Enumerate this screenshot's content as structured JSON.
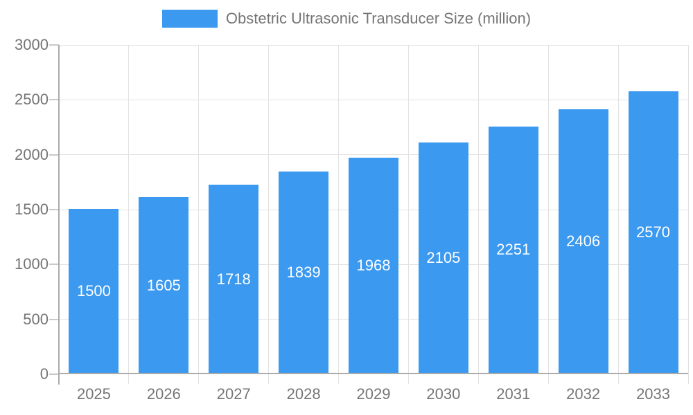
{
  "chart_data": {
    "type": "bar",
    "title": "",
    "legend": "Obstetric Ultrasonic Transducer Size (million)",
    "legend_position": "top",
    "categories": [
      "2025",
      "2026",
      "2027",
      "2028",
      "2029",
      "2030",
      "2031",
      "2032",
      "2033"
    ],
    "values": [
      1500,
      1605,
      1718,
      1839,
      1968,
      2105,
      2251,
      2406,
      2570
    ],
    "series": [
      {
        "name": "Obstetric Ultrasonic Transducer Size (million)",
        "values": [
          1500,
          1605,
          1718,
          1839,
          1968,
          2105,
          2251,
          2406,
          2570
        ]
      }
    ],
    "xlabel": "",
    "ylabel": "",
    "ylim": [
      0,
      3000
    ],
    "yticks": [
      0,
      500,
      1000,
      1500,
      2000,
      2500,
      3000
    ],
    "grid": true,
    "bar_value_labels_shown": true,
    "colors": {
      "bar": "#3B99F0",
      "bar_label": "#FFFFFF",
      "axis_line": "#ABABAB",
      "grid_line": "#E2E2E2",
      "tick": "#C9C9C9",
      "axis_label": "#757575",
      "legend_text": "#757575",
      "background": "#FFFFFF"
    }
  }
}
